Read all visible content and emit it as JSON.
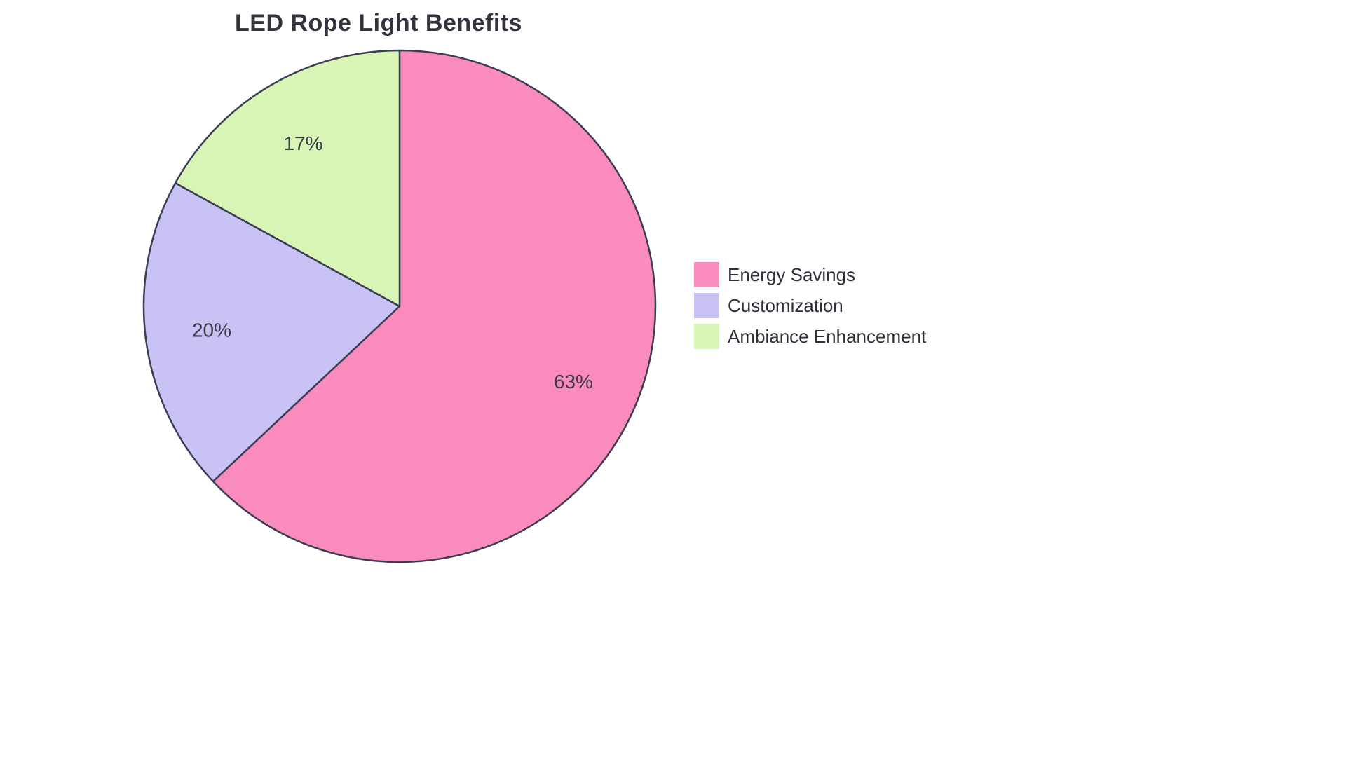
{
  "title": "LED Rope Light Benefits",
  "colors": {
    "background": "#ffffff",
    "stroke": "#3b3d54",
    "title_text": "#33333f",
    "label_text": "#3a3a48"
  },
  "chart_data": {
    "type": "pie",
    "title": "LED Rope Light Benefits",
    "slices": [
      {
        "label": "Energy Savings",
        "value": 63,
        "display": "63%",
        "color": "#f98cbd"
      },
      {
        "label": "Customization",
        "value": 20,
        "display": "20%",
        "color": "#c9c3f5"
      },
      {
        "label": "Ambiance Enhancement",
        "value": 17,
        "display": "17%",
        "color": "#d8f5b6"
      }
    ],
    "start_angle_deg": 0,
    "direction": "clockwise",
    "legend_position": "right",
    "label_radius_fraction": 0.74
  }
}
